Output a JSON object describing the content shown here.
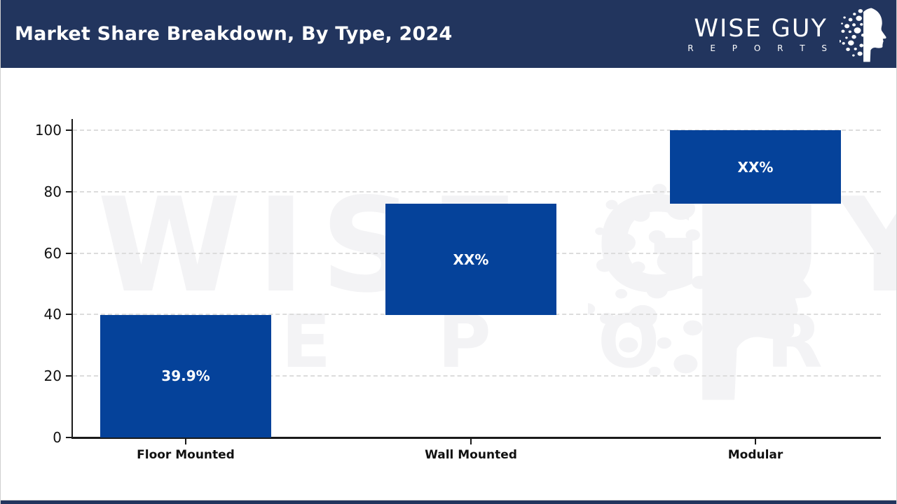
{
  "header": {
    "title": "Market Share Breakdown, By Type, 2024",
    "bg_color": "#22355E",
    "logo": {
      "line1": "WISE GUY",
      "line2": "R E P O R T S",
      "icon": "wiseguy-dotted-face-icon"
    }
  },
  "watermark": {
    "line1": "WISE GUY",
    "line2": "R E P O R T S",
    "icon": "wiseguy-dotted-face-icon"
  },
  "chart_data": {
    "type": "bar",
    "subtype": "waterfall",
    "title": "Market Share Breakdown, By Type, 2024",
    "categories": [
      "Floor Mounted",
      "Wall Mounted",
      "Modular"
    ],
    "series": [
      {
        "name": "Market Share",
        "segments": [
          {
            "category": "Floor Mounted",
            "start": 0,
            "end": 39.9,
            "label": "39.9%"
          },
          {
            "category": "Wall Mounted",
            "start": 39.9,
            "end": 76,
            "label": "XX%"
          },
          {
            "category": "Modular",
            "start": 76,
            "end": 100,
            "label": "XX%"
          }
        ]
      }
    ],
    "xlabel": "",
    "ylabel": "",
    "ylim": [
      0,
      105
    ],
    "yticks": [
      0,
      20,
      40,
      60,
      80,
      100
    ],
    "grid": "horizontal-dashed",
    "legend": "none",
    "bar_color": "#05429A",
    "bar_label_color": "#ffffff"
  },
  "footer": {
    "bg_color": "#22355E"
  }
}
